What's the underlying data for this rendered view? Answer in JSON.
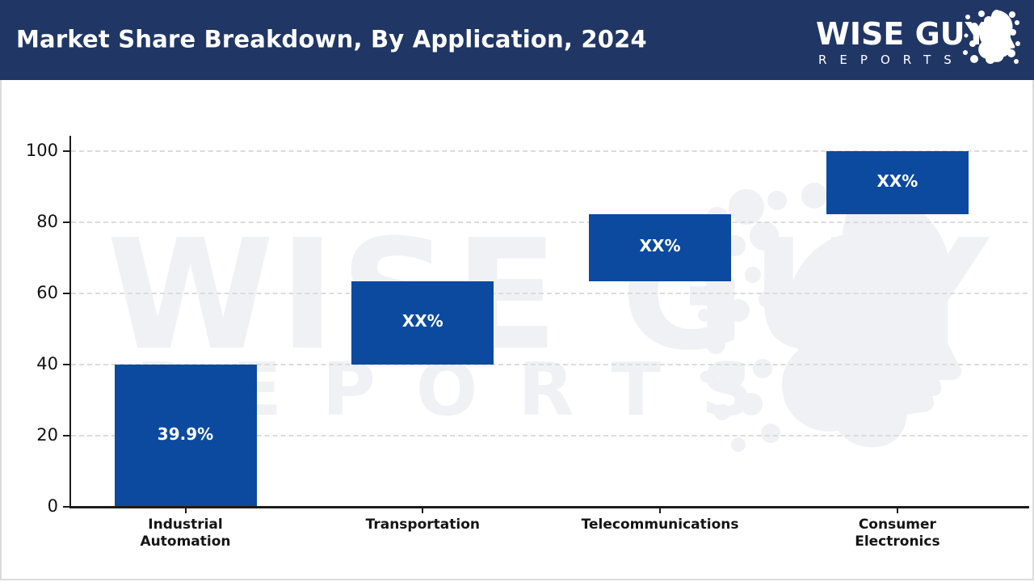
{
  "header": {
    "title": "Market Share Breakdown, By Application, 2024",
    "logo": {
      "line1": "WISE GUY",
      "line2": "REPORTS"
    }
  },
  "watermark": {
    "line1": "WISE GUY",
    "line2": "REPORTS"
  },
  "colors": {
    "header_bg": "#203665",
    "bar": "#0c4aa0",
    "grid": "#dcdcdc",
    "axis": "#1c1c1c",
    "watermark": "#f0f1f4",
    "bar_label": "#ffffff"
  },
  "chart_data": {
    "type": "bar",
    "subtype": "waterfall-floating-bars",
    "title": "Market Share Breakdown, By Application, 2024",
    "categories": [
      "Industrial Automation",
      "Transportation",
      "Telecommunications",
      "Consumer Electronics"
    ],
    "segments": [
      {
        "category": "Industrial Automation",
        "base": 0,
        "top": 39.9,
        "label": "39.9%",
        "label_lines": [
          "Industrial",
          "Automation"
        ]
      },
      {
        "category": "Transportation",
        "base": 40,
        "top": 63.3,
        "label": "XX%",
        "label_lines": [
          "Transportation"
        ]
      },
      {
        "category": "Telecommunications",
        "base": 63.4,
        "top": 82.3,
        "label": "XX%",
        "label_lines": [
          "Telecommunications"
        ]
      },
      {
        "category": "Consumer Electronics",
        "base": 82.2,
        "top": 100,
        "label": "XX%",
        "label_lines": [
          "Consumer",
          "Electronics"
        ]
      }
    ],
    "xlabel": "",
    "ylabel": "",
    "ylim": [
      0,
      105
    ],
    "yticks": [
      0,
      20,
      40,
      60,
      80,
      100
    ],
    "grid": "dashed-horizontal",
    "legend": "none"
  }
}
